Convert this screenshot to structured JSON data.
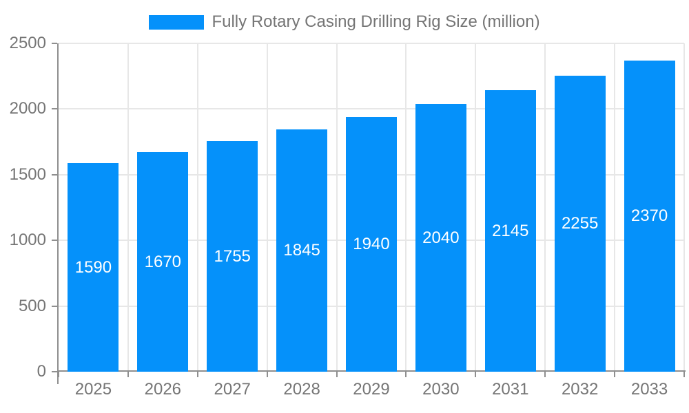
{
  "legend": {
    "label": "Fully Rotary Casing Drilling Rig Size (million)"
  },
  "colors": {
    "bar": "#0591fa",
    "axis": "#8f8f8f",
    "grid": "#e7e7e7",
    "tick_text": "#757575",
    "bar_label_text": "#ffffff",
    "background": "#ffffff"
  },
  "chart_data": {
    "type": "bar",
    "title": "",
    "legend_entries": [
      "Fully Rotary Casing Drilling Rig Size (million)"
    ],
    "legend_position": "top-center",
    "categories": [
      "2025",
      "2026",
      "2027",
      "2028",
      "2029",
      "2030",
      "2031",
      "2032",
      "2033"
    ],
    "series": [
      {
        "name": "Fully Rotary Casing Drilling Rig Size (million)",
        "values": [
          1590,
          1670,
          1755,
          1845,
          1940,
          2040,
          2145,
          2255,
          2370
        ]
      }
    ],
    "bar_labels_shown": true,
    "bar_label_position": "inside-center",
    "xlabel": "",
    "ylabel": "",
    "ylim": [
      0,
      2500
    ],
    "y_ticks": [
      0,
      500,
      1000,
      1500,
      2000,
      2500
    ],
    "grid": "both"
  }
}
